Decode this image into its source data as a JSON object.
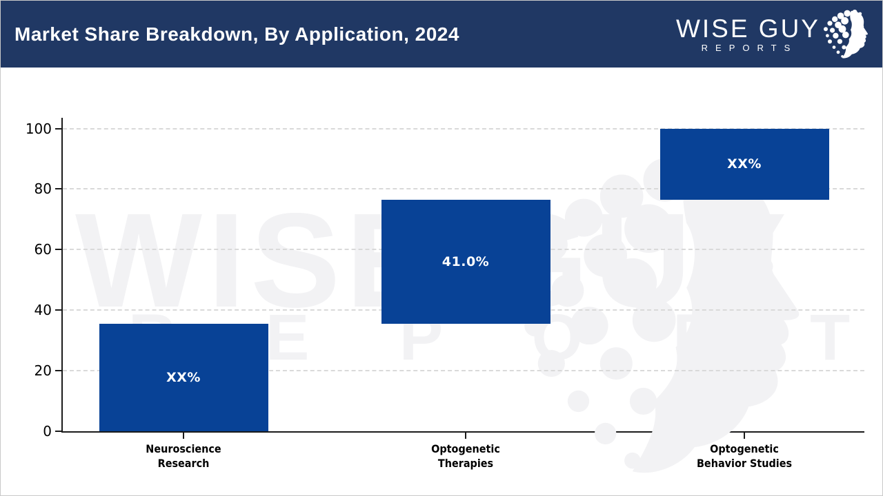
{
  "header": {
    "title": "Market Share Breakdown, By Application, 2024",
    "logo": {
      "line1": "WISE GUY",
      "line2": "REPORTS"
    }
  },
  "watermark": {
    "line1": "WISE GUY",
    "line2": "REPORTS"
  },
  "colors": {
    "header_bg": "#203864",
    "bar": "#084296",
    "grid": "#d9d9d9",
    "axis": "#1a1a1a",
    "bar_label": "#ffffff",
    "watermark": "#f2f2f4"
  },
  "chart_data": {
    "type": "bar",
    "subtype": "waterfall",
    "title": "Market Share Breakdown, By Application, 2024",
    "xlabel": "",
    "ylabel": "",
    "ylim": [
      0,
      104
    ],
    "yticks": [
      0,
      20,
      40,
      60,
      80,
      100
    ],
    "grid": "dashed-horizontal",
    "legend": "none",
    "categories": [
      [
        "Neuroscience",
        "Research"
      ],
      [
        "Optogenetic",
        "Therapies"
      ],
      [
        "Optogenetic",
        "Behavior Studies"
      ]
    ],
    "segments": [
      {
        "category": "Neuroscience Research",
        "base": 0,
        "top": 35.5,
        "value_label": "XX%"
      },
      {
        "category": "Optogenetic Therapies",
        "base": 35.5,
        "top": 76.5,
        "value_label": "41.0%"
      },
      {
        "category": "Optogenetic Behavior Studies",
        "base": 76.5,
        "top": 100,
        "value_label": "XX%"
      }
    ]
  }
}
